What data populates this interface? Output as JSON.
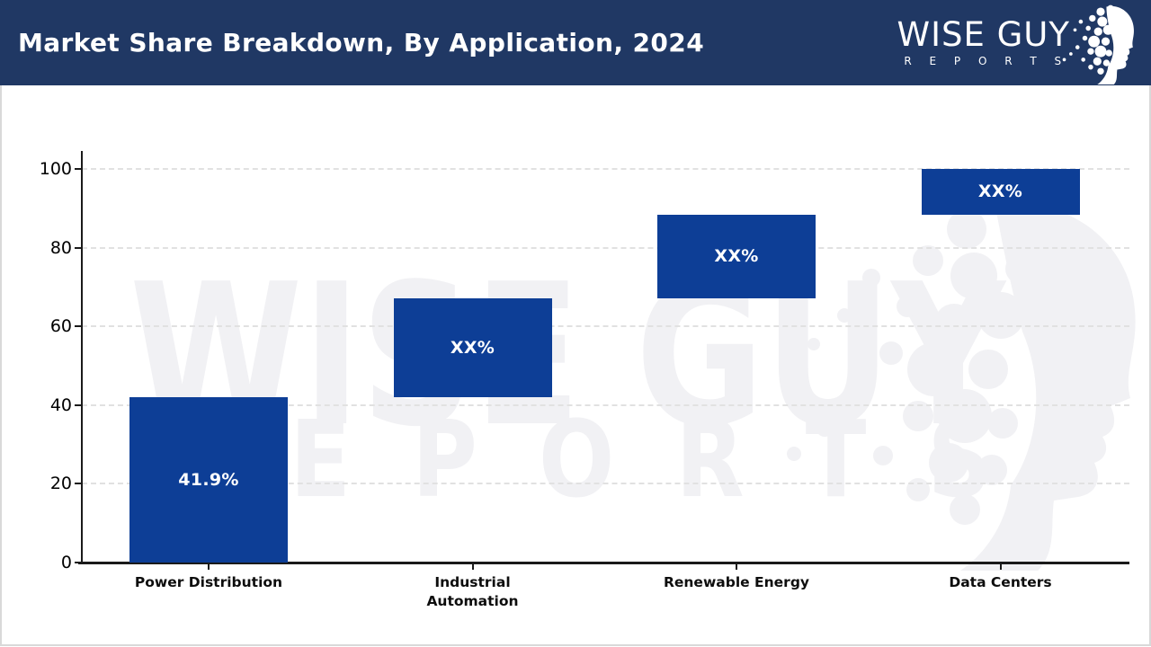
{
  "header": {
    "title": "Market Share Breakdown, By Application, 2024",
    "bg_color": "#203864",
    "logo": {
      "line1": "WISE GUY",
      "line2": "R E P O R T S"
    }
  },
  "watermark": {
    "line1": "WISE GUY",
    "line2": "R E P O R T S"
  },
  "chart_data": {
    "type": "bar",
    "subtype": "waterfall",
    "title": "Market Share Breakdown, By Application, 2024",
    "categories": [
      "Power Distribution",
      "Industrial Automation",
      "Renewable Energy",
      "Data Centers"
    ],
    "category_lines": [
      [
        "Power Distribution"
      ],
      [
        "Industrial",
        "Automation"
      ],
      [
        "Renewable Energy"
      ],
      [
        "Data Centers"
      ]
    ],
    "segments": [
      {
        "category": "Power Distribution",
        "start": 0,
        "end": 41.9,
        "bar_label": "41.9%"
      },
      {
        "category": "Industrial Automation",
        "start": 41.9,
        "end": 67.2,
        "bar_label": "XX%"
      },
      {
        "category": "Renewable Energy",
        "start": 67.2,
        "end": 88.4,
        "bar_label": "XX%"
      },
      {
        "category": "Data Centers",
        "start": 88.4,
        "end": 100,
        "bar_label": "XX%"
      }
    ],
    "y_ticks": [
      0,
      20,
      40,
      60,
      80,
      100
    ],
    "ylim": [
      0,
      104
    ],
    "xlabel": "",
    "ylabel": "",
    "bar_color": "#0d3e96",
    "grid": "horizontal-dashed",
    "legend": "none"
  }
}
